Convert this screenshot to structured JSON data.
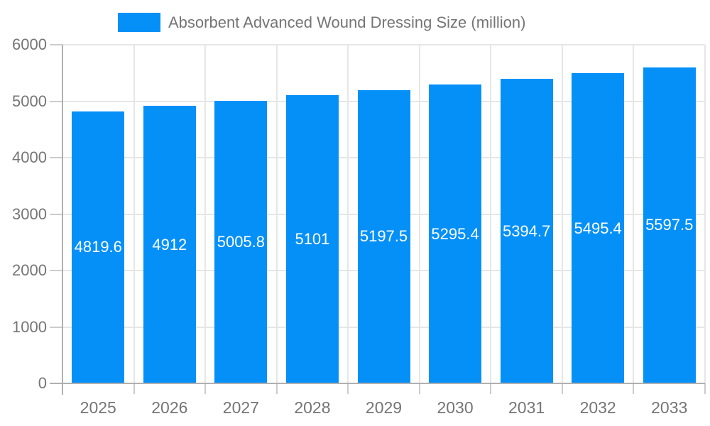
{
  "legend": {
    "label": "Absorbent Advanced Wound Dressing Size (million)"
  },
  "chart_data": {
    "type": "bar",
    "title": "",
    "xlabel": "",
    "ylabel": "",
    "categories": [
      "2025",
      "2026",
      "2027",
      "2028",
      "2029",
      "2030",
      "2031",
      "2032",
      "2033"
    ],
    "series": [
      {
        "name": "Absorbent Advanced Wound Dressing Size (million)",
        "values": [
          4819.6,
          4912,
          5005.8,
          5101,
          5197.5,
          5295.4,
          5394.7,
          5495.4,
          5597.5
        ]
      }
    ],
    "value_labels_shown": true,
    "ylim": [
      0,
      6000
    ],
    "yticks": [
      0,
      1000,
      2000,
      3000,
      4000,
      5000,
      6000
    ],
    "grid": true,
    "legend_position": "top"
  },
  "colors": {
    "bar": "#0590f8",
    "grid": "#e6e6e6",
    "axis": "#b0b0b0",
    "tick": "#cccccc",
    "text": "#757575",
    "value_label": "#ffffff",
    "background": "#ffffff"
  }
}
